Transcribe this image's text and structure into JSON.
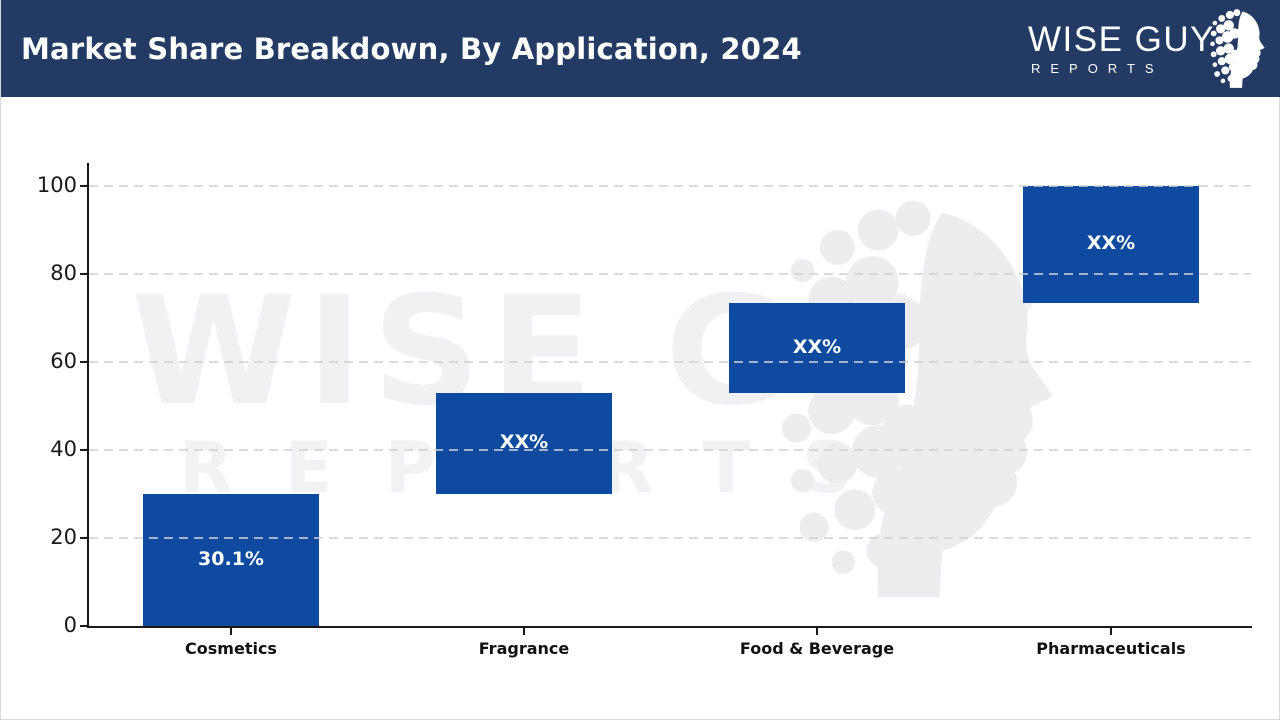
{
  "header": {
    "title": "Market Share Breakdown, By Application, 2024",
    "bg_color": "#233a64",
    "logo": {
      "line1": "WISE GUY",
      "line2": "REPORTS"
    }
  },
  "watermark": {
    "line1": "WISE GUY",
    "line2": "REPORTS"
  },
  "chart_data": {
    "type": "bar",
    "subtype": "waterfall",
    "title": "Market Share Breakdown, By Application, 2024",
    "xlabel": "",
    "ylabel": "",
    "categories": [
      "Cosmetics",
      "Fragrance",
      "Food & Beverage",
      "Pharmaceuticals"
    ],
    "segments": [
      {
        "category": "Cosmetics",
        "start": 0,
        "end": 30.1,
        "value": 30.1,
        "label": "30.1%"
      },
      {
        "category": "Fragrance",
        "start": 30.1,
        "end": 53,
        "value": 22.9,
        "label": "XX%"
      },
      {
        "category": "Food & Beverage",
        "start": 53,
        "end": 73.5,
        "value": 20.5,
        "label": "XX%"
      },
      {
        "category": "Pharmaceuticals",
        "start": 73.5,
        "end": 100,
        "value": 26.5,
        "label": "XX%"
      }
    ],
    "yticks": [
      0,
      20,
      40,
      60,
      80,
      100
    ],
    "ylim": [
      0,
      105
    ],
    "grid": "horizontal dashed",
    "legend": "none",
    "bar_color": "#0d4aa0",
    "bar_label_color": "#ffffff",
    "axis_color": "#1a1a1a",
    "gridline_color": "#d0d0d0"
  }
}
